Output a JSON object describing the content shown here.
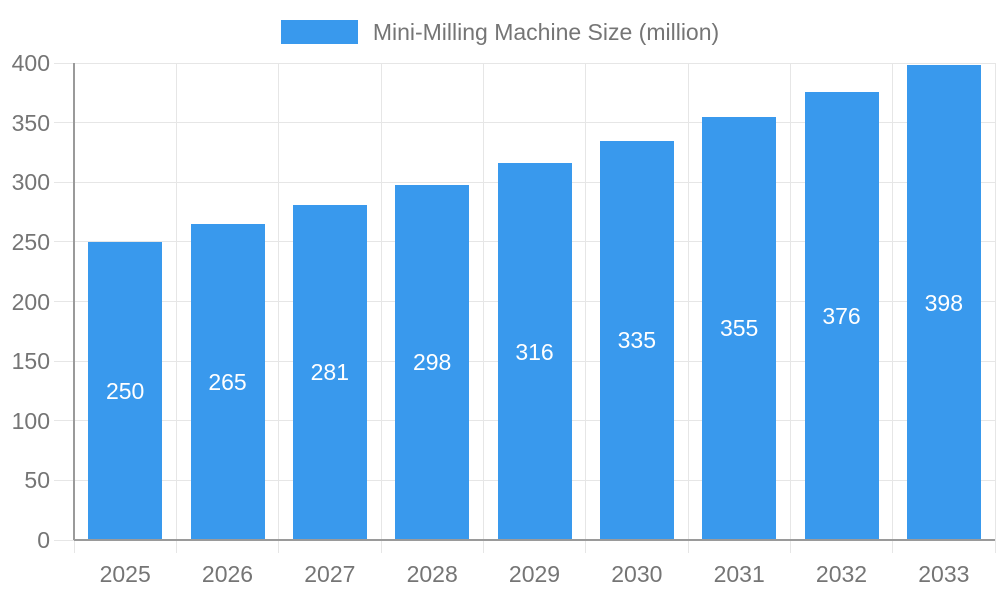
{
  "legend": {
    "label": "Mini-Milling Machine Size (million)"
  },
  "chart_data": {
    "type": "bar",
    "title": "Mini-Milling Machine Size (million)",
    "categories": [
      "2025",
      "2026",
      "2027",
      "2028",
      "2029",
      "2030",
      "2031",
      "2032",
      "2033"
    ],
    "values": [
      250,
      265,
      281,
      298,
      316,
      335,
      355,
      376,
      398
    ],
    "xlabel": "",
    "ylabel": "",
    "ylim": [
      0,
      400
    ],
    "yticks": [
      0,
      50,
      100,
      150,
      200,
      250,
      300,
      350,
      400
    ],
    "grid": true,
    "legend_position": "top-center",
    "bar_labels_inside": true,
    "colors": {
      "bar": "#3999ED",
      "bar_value_label": "#ffffff",
      "axis_text": "#757575",
      "axis_line": "#9a9a9a",
      "gridline": "#e6e6e6",
      "background": "#ffffff"
    }
  }
}
